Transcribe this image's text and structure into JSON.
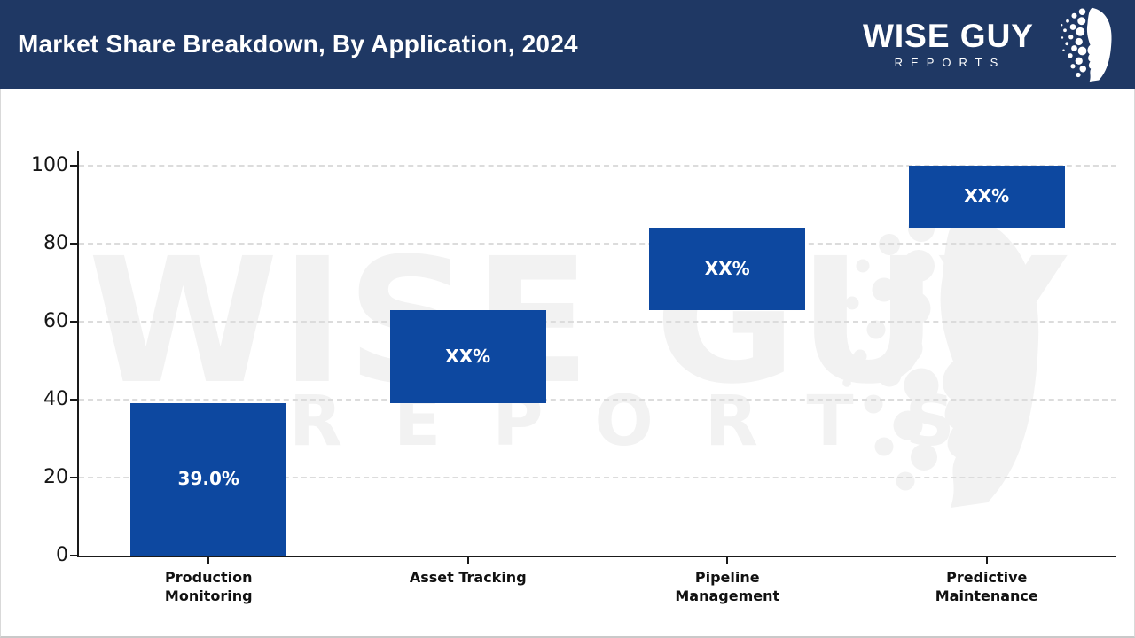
{
  "header": {
    "title": "Market Share Breakdown, By Application, 2024",
    "bg_color": "#1f3864",
    "logo": {
      "name": "WISE GUY",
      "sub": "REPORTS"
    }
  },
  "watermark": {
    "line1": "WISE GUY",
    "line2": "REPORTS"
  },
  "chart_data": {
    "type": "bar",
    "subtype": "waterfall",
    "title": "Market Share Breakdown, By Application, 2024",
    "categories": [
      "Production Monitoring",
      "Asset Tracking",
      "Pipeline Management",
      "Predictive Maintenance"
    ],
    "segments": [
      {
        "category": "Production Monitoring",
        "start": 0,
        "end": 39,
        "label": "39.0%"
      },
      {
        "category": "Asset Tracking",
        "start": 39,
        "end": 63,
        "label": "XX%"
      },
      {
        "category": "Pipeline Management",
        "start": 63,
        "end": 84,
        "label": "XX%"
      },
      {
        "category": "Predictive Maintenance",
        "start": 84,
        "end": 100,
        "label": "XX%"
      }
    ],
    "values": [
      39,
      24,
      21,
      16
    ],
    "displayed_labels": [
      "39.0%",
      "XX%",
      "XX%",
      "XX%"
    ],
    "yticks": [
      0,
      20,
      40,
      60,
      80,
      100
    ],
    "ylim": [
      0,
      104
    ],
    "xlabel": "",
    "ylabel": "",
    "legend": "none",
    "grid": "horizontal-dashed",
    "bar_color": "#0d48a0",
    "axis_color": "#1a1a1a",
    "grid_color": "#dcdcdc"
  }
}
